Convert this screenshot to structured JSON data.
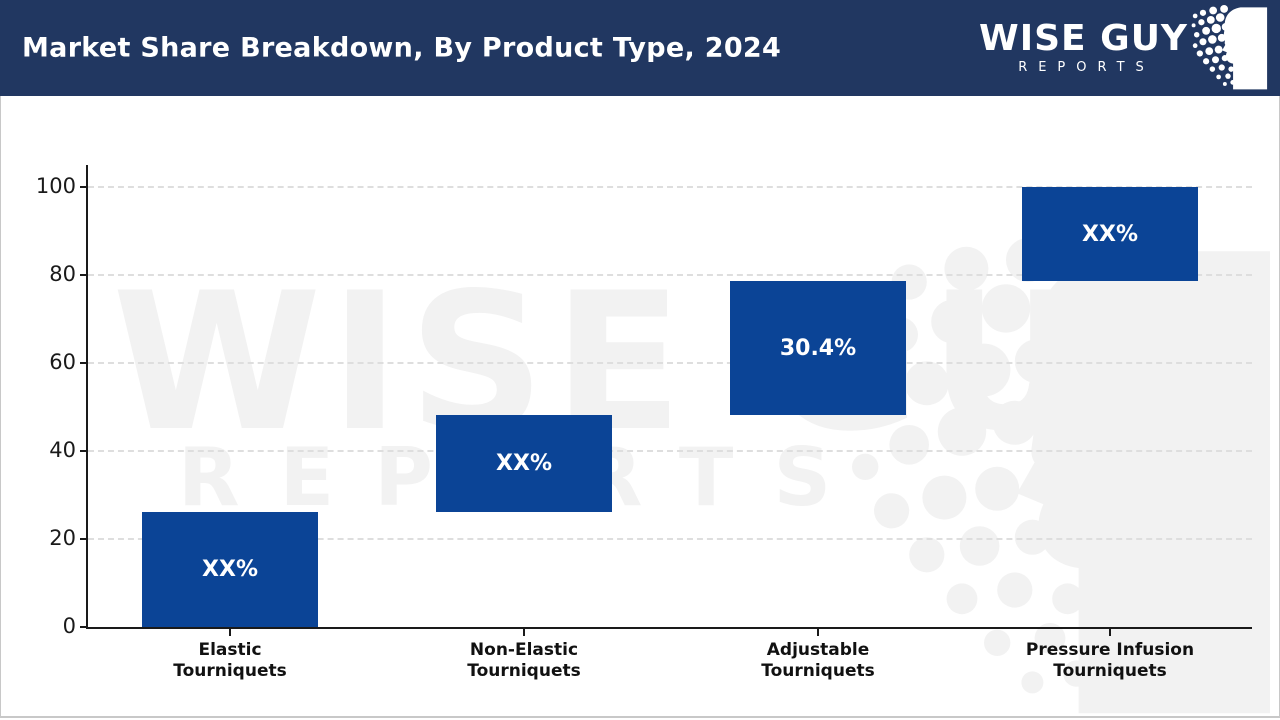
{
  "header": {
    "title": "Market Share Breakdown, By Product Type, 2024",
    "logo": {
      "line1": "WISE GUY",
      "line2": "REPORTS"
    }
  },
  "watermark": {
    "line1": "WISE GUY",
    "line2": "REPORTS"
  },
  "chart_data": {
    "type": "bar",
    "subtype": "waterfall",
    "title": "Market Share Breakdown, By Product Type, 2024",
    "categories": [
      "Elastic Tourniquets",
      "Non-Elastic Tourniquets",
      "Adjustable Tourniquets",
      "Pressure Infusion Tourniquets"
    ],
    "category_lines": [
      [
        "Elastic",
        "Tourniquets"
      ],
      [
        "Non-Elastic",
        "Tourniquets"
      ],
      [
        "Adjustable",
        "Tourniquets"
      ],
      [
        "Pressure Infusion",
        "Tourniquets"
      ]
    ],
    "segments": [
      {
        "category": "Elastic Tourniquets",
        "start": 0,
        "end": 26.2,
        "label": "XX%"
      },
      {
        "category": "Non-Elastic Tourniquets",
        "start": 26.2,
        "end": 48.2,
        "label": "XX%"
      },
      {
        "category": "Adjustable Tourniquets",
        "start": 48.2,
        "end": 78.6,
        "label": "30.4%",
        "value": 30.4
      },
      {
        "category": "Pressure Infusion Tourniquets",
        "start": 78.6,
        "end": 100,
        "label": "XX%"
      }
    ],
    "yticks": [
      0,
      20,
      40,
      60,
      80,
      100
    ],
    "ylim": [
      0,
      100
    ],
    "xlabel": "",
    "ylabel": "",
    "grid": "horizontal-dashed",
    "legend": "none"
  },
  "colors": {
    "header_bg": "#213761",
    "bar": "#0b4496",
    "grid": "#dedede",
    "axis": "#1a1a1a",
    "watermark": "#f2f2f2",
    "border": "#c8c8c8",
    "title_text": "#ffffff",
    "bar_label_text": "#ffffff"
  }
}
